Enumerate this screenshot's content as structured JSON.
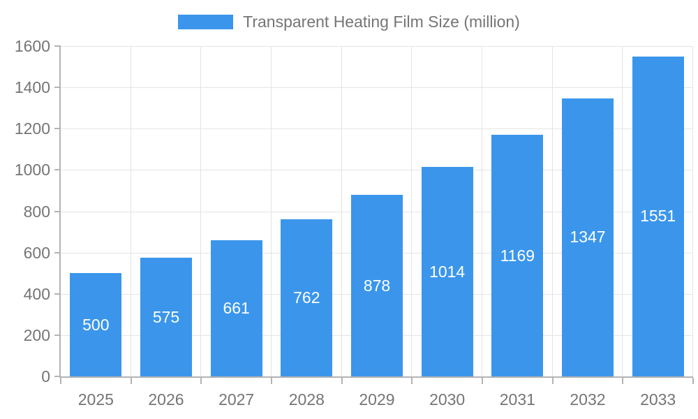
{
  "legend": {
    "label": "Transparent Heating Film Size (million)"
  },
  "chart_data": {
    "type": "bar",
    "title": "Transparent Heating Film Size (million)",
    "categories": [
      "2025",
      "2026",
      "2027",
      "2028",
      "2029",
      "2030",
      "2031",
      "2032",
      "2033"
    ],
    "values": [
      500,
      575,
      661,
      762,
      878,
      1014,
      1169,
      1347,
      1551
    ],
    "series": [
      {
        "name": "Transparent Heating Film Size (million)",
        "values": [
          500,
          575,
          661,
          762,
          878,
          1014,
          1169,
          1347,
          1551
        ]
      }
    ],
    "xlabel": "",
    "ylabel": "",
    "ylim": [
      0,
      1600
    ],
    "ytick_interval": 200,
    "yticks": [
      0,
      200,
      400,
      600,
      800,
      1000,
      1200,
      1400,
      1600
    ],
    "grid": "both",
    "legend_position": "top-center",
    "bar_value_labels": "inside-center"
  },
  "colors": {
    "bar": "#3B96EB",
    "bar_label": "#ffffff",
    "grid": "#e4e4e4",
    "axis": "#b3b3b3",
    "text": "#757575",
    "background": "#ffffff"
  }
}
